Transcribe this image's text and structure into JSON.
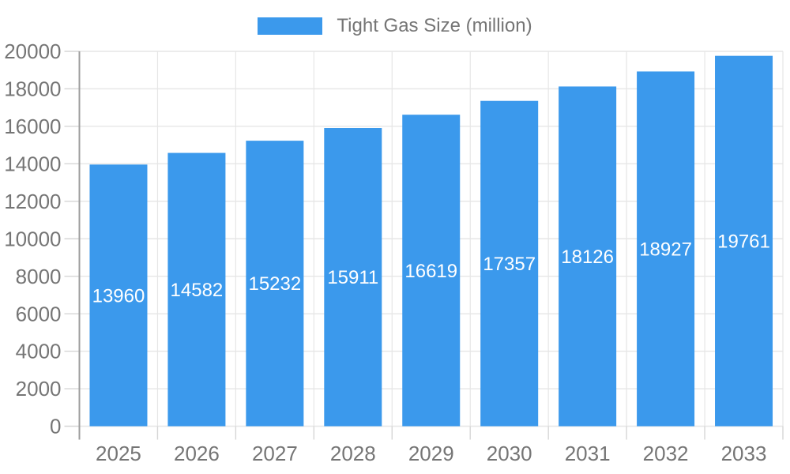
{
  "legend": {
    "label": "Tight Gas Size (million)",
    "position": "top"
  },
  "chart_data": {
    "type": "bar",
    "title": "Tight Gas Size (million)",
    "categories": [
      "2025",
      "2026",
      "2027",
      "2028",
      "2029",
      "2030",
      "2031",
      "2032",
      "2033"
    ],
    "series": [
      {
        "name": "Tight Gas Size (million)",
        "values": [
          13960,
          14582,
          15232,
          15911,
          16619,
          17357,
          18126,
          18927,
          19761
        ]
      }
    ],
    "value_labels": [
      "13960",
      "14582",
      "15232",
      "15911",
      "16619",
      "17357",
      "18126",
      "18927",
      "19761"
    ],
    "xlabel": "",
    "ylabel": "",
    "ylim": [
      0,
      20000
    ],
    "yticks": [
      0,
      2000,
      4000,
      6000,
      8000,
      10000,
      12000,
      14000,
      16000,
      18000,
      20000
    ],
    "grid": true,
    "legend_position": "top",
    "colors": {
      "bar": "#3b99ec",
      "grid": "#e6e6e6",
      "tick": "#d6d6d6",
      "axis_line": "#9e9e9e",
      "axis_text": "#757575",
      "value_text": "#ffffff",
      "background": "#ffffff"
    }
  }
}
